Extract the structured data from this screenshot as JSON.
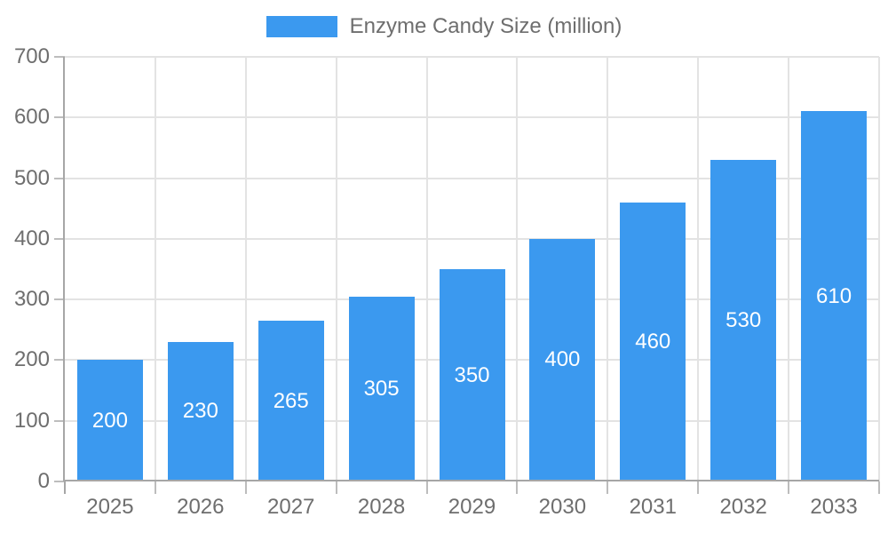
{
  "legend": {
    "label": "Enzyme Candy Size (million)"
  },
  "chart_data": {
    "type": "bar",
    "title": "Enzyme Candy Size (million)",
    "xlabel": "",
    "ylabel": "",
    "categories": [
      "2025",
      "2026",
      "2027",
      "2028",
      "2029",
      "2030",
      "2031",
      "2032",
      "2033"
    ],
    "values": [
      200,
      230,
      265,
      305,
      350,
      400,
      460,
      530,
      610
    ],
    "value_labels": [
      "200",
      "230",
      "265",
      "305",
      "350",
      "400",
      "460",
      "530",
      "610"
    ],
    "ylim": [
      0,
      700
    ],
    "yticks": [
      0,
      100,
      200,
      300,
      400,
      500,
      600,
      700
    ],
    "ytick_labels": [
      "0",
      "100",
      "200",
      "300",
      "400",
      "500",
      "600",
      "700"
    ],
    "grid": true,
    "legend_position": "top",
    "colors": {
      "bar": "#3B99EF",
      "bar_value_text": "#ffffff",
      "grid": "#e3e3e3",
      "axis": "#a6a6a6",
      "tick_mark": "#bdbdbd",
      "label_text": "#6e6e6e",
      "background": "#ffffff"
    }
  }
}
